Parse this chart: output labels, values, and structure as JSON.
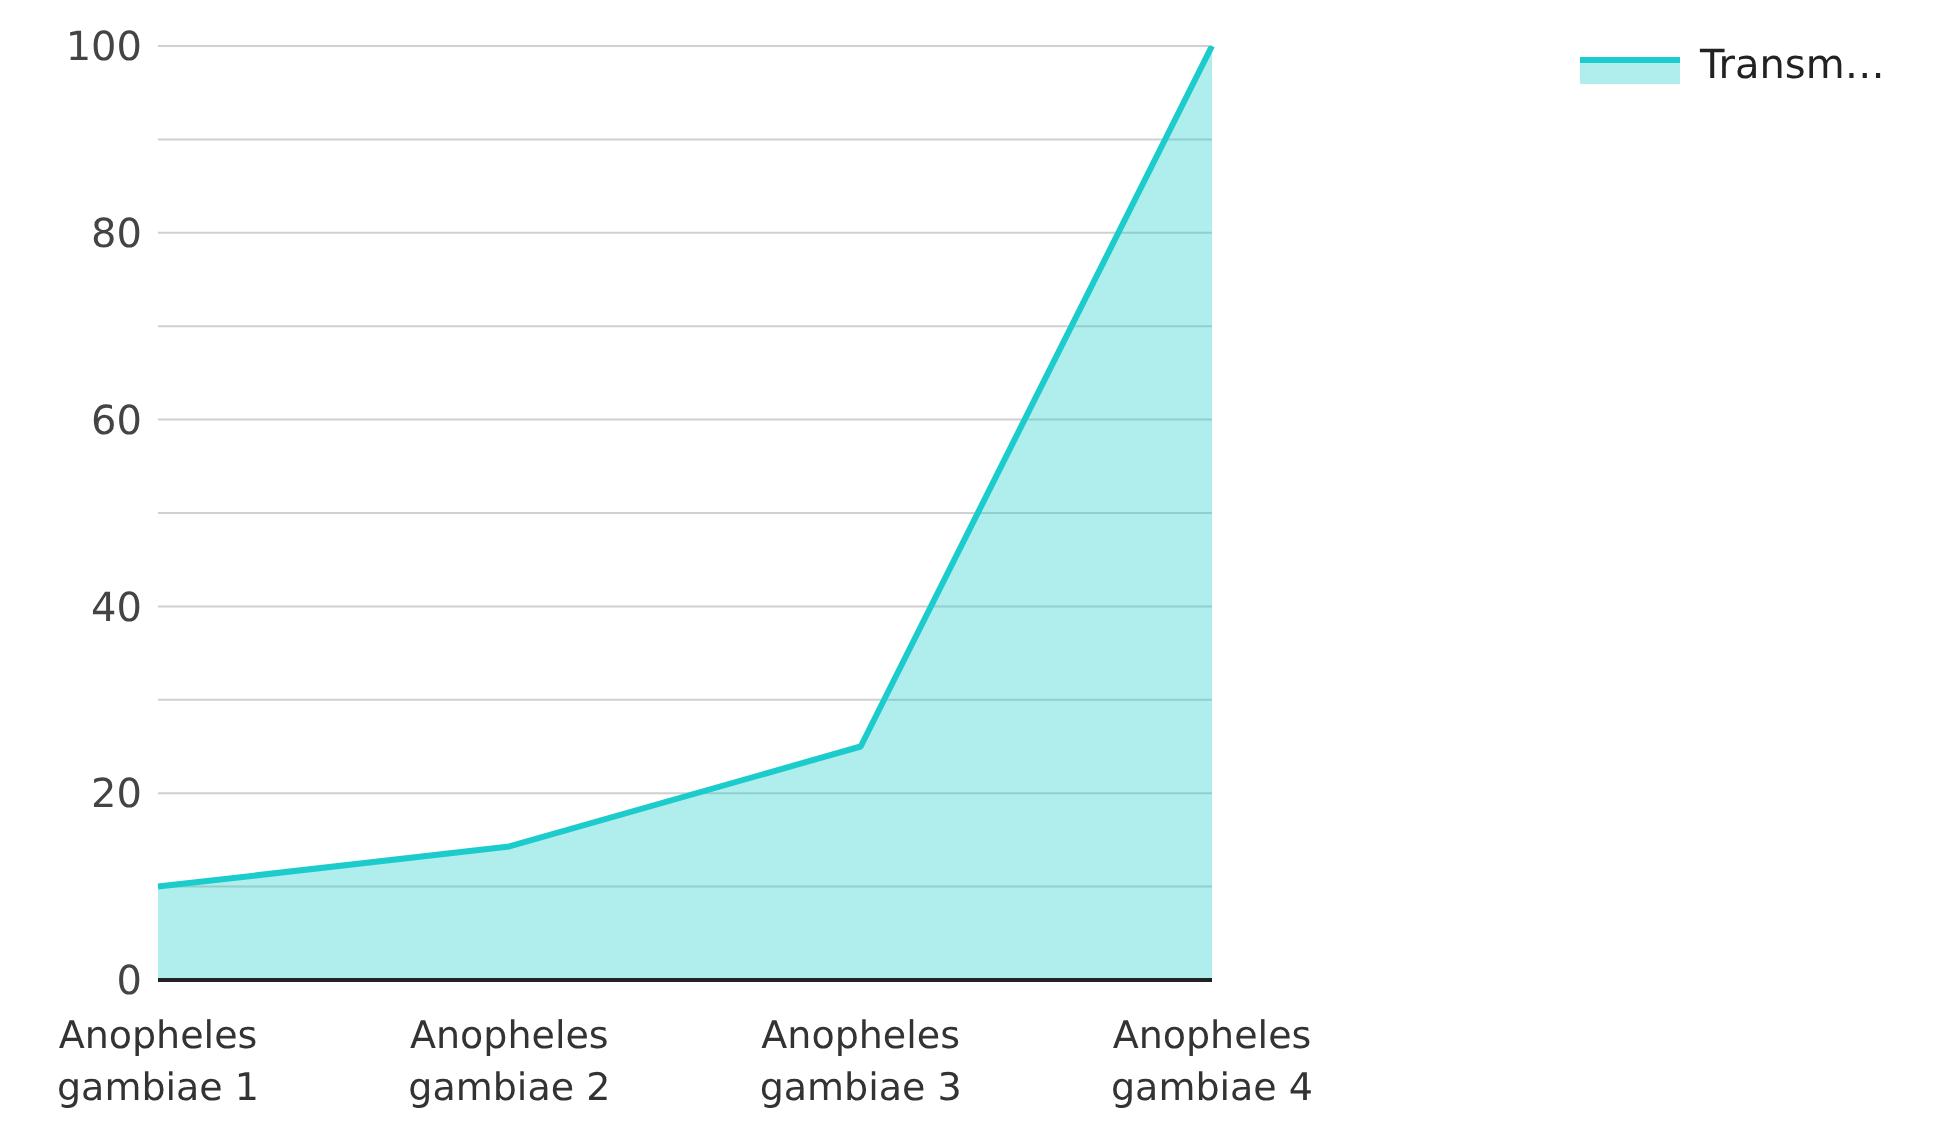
{
  "chart_data": {
    "type": "area",
    "categories": [
      "Anopheles gambiae 1",
      "Anopheles gambiae 2",
      "Anopheles gambiae 3",
      "Anopheles gambiae 4"
    ],
    "series": [
      {
        "name": "Transm…",
        "color": "#1ccccc",
        "values": [
          10,
          14.3,
          25,
          100
        ]
      }
    ],
    "ylim": [
      0,
      100
    ],
    "yticks": [
      0,
      {
        "value": 10,
        "label": null
      },
      20,
      {
        "value": 30,
        "label": null
      },
      40,
      {
        "value": 50,
        "label": null
      },
      60,
      {
        "value": 70,
        "label": null
      },
      80,
      {
        "value": 90,
        "label": null
      },
      100
    ],
    "grid": "y",
    "legend": "top right",
    "marker": "none",
    "line_style": "solid"
  }
}
